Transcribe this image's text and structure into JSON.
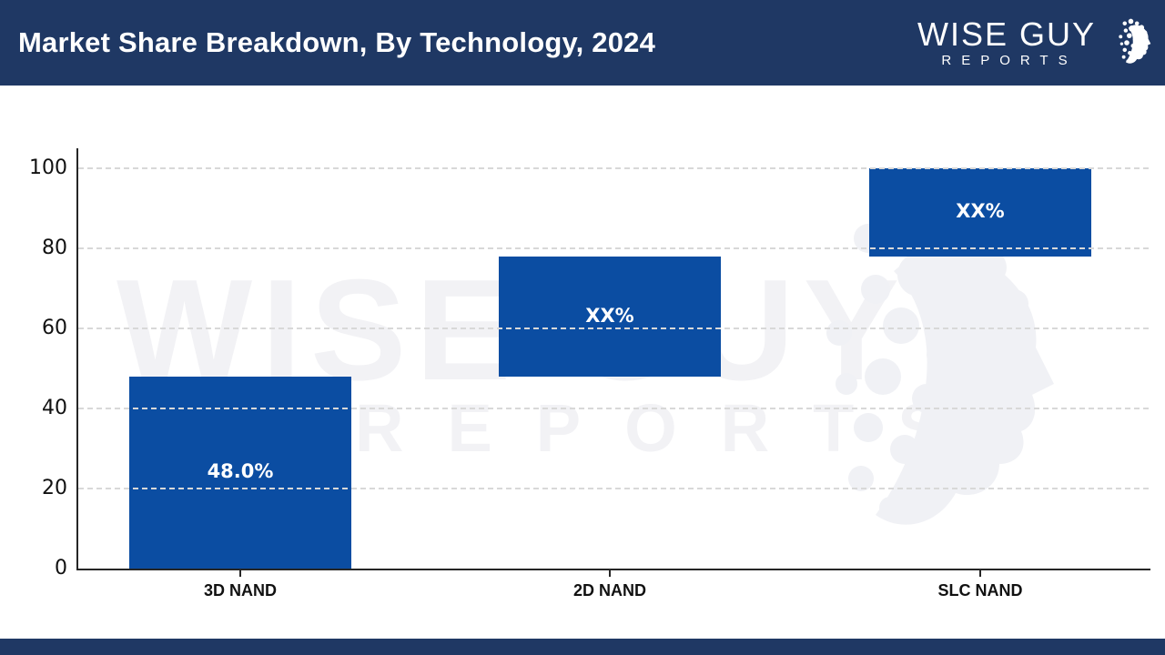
{
  "header": {
    "title": "Market Share Breakdown, By Technology, 2024",
    "logo": {
      "line1": "WISE GUY",
      "line2": "REPORTS"
    }
  },
  "watermark": {
    "line1": "WISE GUY",
    "line2": "REPORTS"
  },
  "colors": {
    "header_bg": "#1f3864",
    "footer_bg": "#1f3864",
    "bar_fill": "#0b4da2",
    "axis": "#262626",
    "gridline": "#d8d8d8",
    "bar_label_text": "#ffffff",
    "tick_text": "#111111",
    "watermark_text": "#f2f2f5"
  },
  "chart_data": {
    "type": "bar",
    "subtype": "waterfall",
    "title": "Market Share Breakdown, By Technology, 2024",
    "categories": [
      "3D NAND",
      "2D NAND",
      "SLC NAND"
    ],
    "segments": [
      {
        "category": "3D NAND",
        "start": 0,
        "end": 48,
        "label": "48.0%"
      },
      {
        "category": "2D NAND",
        "start": 48,
        "end": 78,
        "label": "XX%"
      },
      {
        "category": "SLC NAND",
        "start": 78,
        "end": 100,
        "label": "XX%"
      }
    ],
    "ylim": [
      0,
      100
    ],
    "yticks": [
      0,
      20,
      40,
      60,
      80,
      100
    ],
    "grid": "horizontal-dashed",
    "legend": false,
    "xlabel": "",
    "ylabel": ""
  }
}
